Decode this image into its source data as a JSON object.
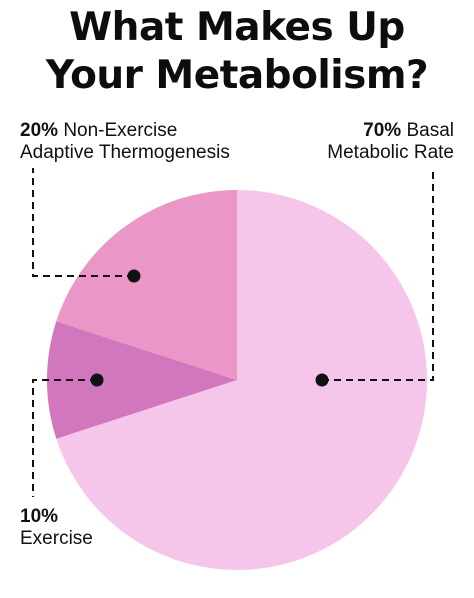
{
  "title": {
    "line1": "What Makes Up",
    "line2": "Your Metabolism?"
  },
  "chart_data": {
    "type": "pie",
    "title": "What Makes Up Your Metabolism?",
    "start_angle_deg": 0,
    "direction": "clockwise",
    "slices": [
      {
        "label_pct": "70%",
        "label_line1": "Basal",
        "label_line2": "Metabolic Rate",
        "value": 70,
        "color": "#f5c6e9"
      },
      {
        "label_pct": "10%",
        "label_line1": "Exercise",
        "label_line2": "",
        "value": 10,
        "color": "#d277bd"
      },
      {
        "label_pct": "20%",
        "label_line1": "Non-Exercise",
        "label_line2": "Adaptive Thermogenesis",
        "value": 20,
        "color": "#ea97c8"
      }
    ],
    "legend": "none",
    "leader_line_style": "dashed"
  },
  "colors": {
    "title": "#0d0d0d",
    "text": "#111111",
    "leader": "#111111",
    "background": "#ffffff"
  }
}
